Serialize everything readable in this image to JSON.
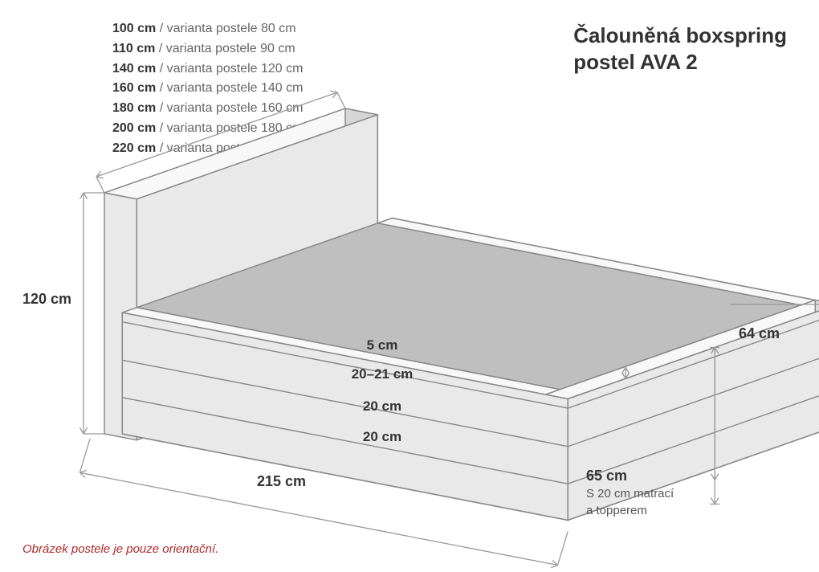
{
  "title_line1": "Čalouněná boxspring",
  "title_line2": "postel AVA 2",
  "variants": [
    {
      "bold": "100 cm",
      "sub": " / varianta postele 80 cm"
    },
    {
      "bold": "110 cm",
      "sub": " / varianta postele 90 cm"
    },
    {
      "bold": "140 cm",
      "sub": " / varianta postele 120 cm"
    },
    {
      "bold": "160 cm",
      "sub": " / varianta postele 140 cm"
    },
    {
      "bold": "180 cm",
      "sub": " / varianta postele 160 cm"
    },
    {
      "bold": "200 cm",
      "sub": " / varianta postele 180 cm"
    },
    {
      "bold": "220 cm",
      "sub": " / varianta postele 200 cm"
    }
  ],
  "dims": {
    "headboard_height": "120 cm",
    "depth": "215 cm",
    "side_height": "64 cm",
    "seat_height": "65 cm",
    "seat_sub": "S 20 cm matrací\na topperem",
    "layer_topper": "5 cm",
    "layer_mattress": "20–21 cm",
    "layer_box1": "20 cm",
    "layer_box2": "20 cm"
  },
  "footnote": "Obrázek postele je pouze orientační.",
  "style": {
    "stroke": "#888888",
    "thin_stroke": "#999999",
    "fill_light": "#f8f8f8",
    "fill_top": "#bfbfbf",
    "fill_front": "#e9e9e9",
    "fill_side": "#dcdcdc",
    "fill_head_front": "#e9e9e9",
    "fill_head_side": "#d6d6d6"
  }
}
